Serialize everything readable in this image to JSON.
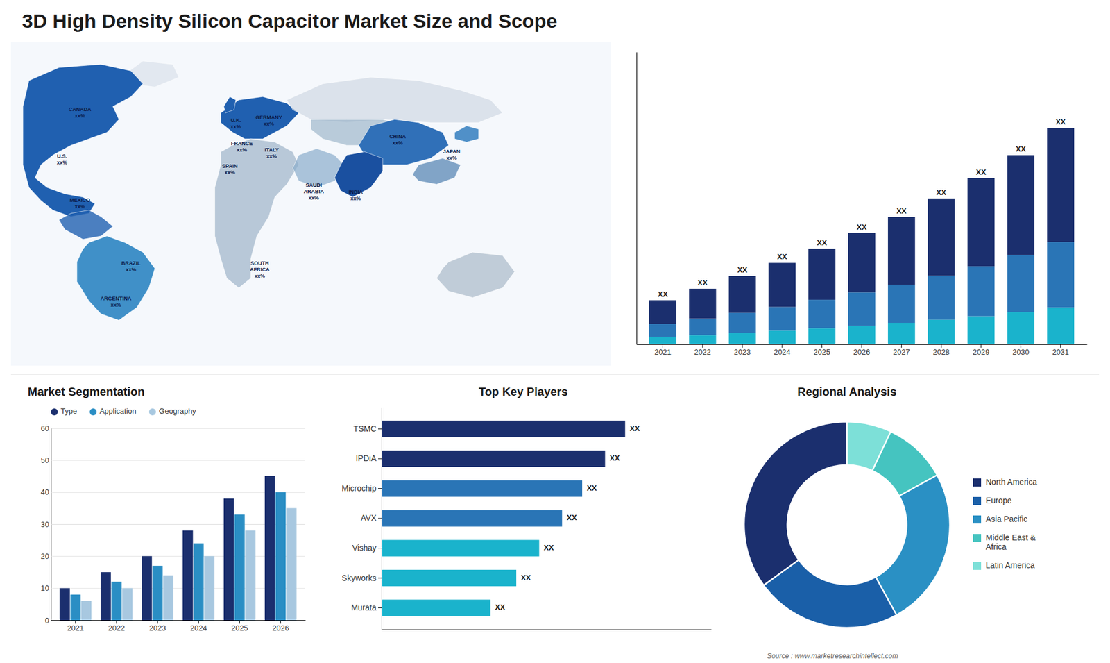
{
  "chart_data": [
    {
      "type": "map",
      "annotations": [
        "CANADA\nxx%",
        "U.S.\nxx%",
        "MEXICO\nxx%",
        "BRAZIL\nxx%",
        "ARGENTINA\nxx%",
        "U.K.\nxx%",
        "FRANCE\nxx%",
        "SPAIN\nxx%",
        "GERMANY\nxx%",
        "ITALY\nxx%",
        "SOUTH\nAFRICA\nxx%",
        "SAUDI\nARABIA\nxx%",
        "CHINA\nxx%",
        "INDIA\nxx%",
        "JAPAN\nxx%"
      ]
    },
    {
      "type": "bar",
      "title": "3D High Density Silicon Capacitor Market Size and Scope",
      "categories": [
        "2021",
        "2022",
        "2023",
        "2024",
        "2025",
        "2026",
        "2027",
        "2028",
        "2029",
        "2030",
        "2031"
      ],
      "stacked": true,
      "series": [
        {
          "color": "#1ab3cc",
          "values": [
            0.3,
            0.38,
            0.47,
            0.57,
            0.67,
            0.78,
            0.9,
            1.03,
            1.18,
            1.35,
            1.55
          ]
        },
        {
          "color": "#2a75b6",
          "values": [
            0.55,
            0.7,
            0.85,
            1.0,
            1.2,
            1.4,
            1.6,
            1.85,
            2.1,
            2.4,
            2.75
          ]
        },
        {
          "color": "#1b2f6e",
          "values": [
            1.0,
            1.25,
            1.55,
            1.85,
            2.15,
            2.5,
            2.85,
            3.25,
            3.7,
            4.2,
            4.8
          ]
        }
      ],
      "ylim": [
        0,
        12.285
      ],
      "tick_labels": "x",
      "annotations": [
        "XX",
        "XX",
        "XX",
        "XX",
        "XX",
        "XX",
        "XX",
        "XX",
        "XX",
        "XX",
        "XX"
      ]
    },
    {
      "type": "bar",
      "title": "Market Segmentation",
      "categories": [
        "2021",
        "2022",
        "2023",
        "2024",
        "2025",
        "2026"
      ],
      "series": [
        {
          "name": "Type",
          "color": "#1b2f6e",
          "values": [
            10,
            15,
            20,
            28,
            38,
            45
          ]
        },
        {
          "name": "Application",
          "color": "#2a8ec4",
          "values": [
            8,
            12,
            17,
            24,
            33,
            40
          ]
        },
        {
          "name": "Geography",
          "color": "#a8c8e0",
          "values": [
            6,
            10,
            14,
            20,
            28,
            35
          ]
        }
      ],
      "ylim": [
        0,
        60
      ],
      "yticks": [
        0,
        10,
        20,
        30,
        40,
        50,
        60
      ],
      "grid": true,
      "legend": "top"
    },
    {
      "type": "bar",
      "orientation": "horizontal",
      "title": "Top Key Players",
      "categories": [
        "TSMC",
        "IPDiA",
        "Microchip",
        "AVX",
        "Vishay",
        "Skyworks",
        "Murata"
      ],
      "values": [
        85,
        78,
        70,
        63,
        55,
        47,
        38
      ],
      "colors": [
        "#1b2f6e",
        "#1b2f6e",
        "#2a75b6",
        "#2a75b6",
        "#1ab3cc",
        "#1ab3cc",
        "#1ab3cc"
      ],
      "value_labels": [
        "XX",
        "XX",
        "XX",
        "XX",
        "XX",
        "XX",
        "XX"
      ],
      "xlim": [
        0,
        115
      ],
      "tick_labels": "y"
    },
    {
      "type": "donut",
      "title": "Regional Analysis",
      "categories": [
        "Latin America",
        "Middle East &\nAfrica",
        "Asia Pacific",
        "Europe",
        "North America"
      ],
      "values": [
        7,
        10,
        25,
        23,
        35
      ],
      "colors": [
        "#7de0d8",
        "#45c4c0",
        "#2a90c4",
        "#1a5fa8",
        "#1b2f6e"
      ],
      "legend": "right",
      "annotations": [
        "Source : www.marketresearchintellect.com"
      ]
    }
  ]
}
